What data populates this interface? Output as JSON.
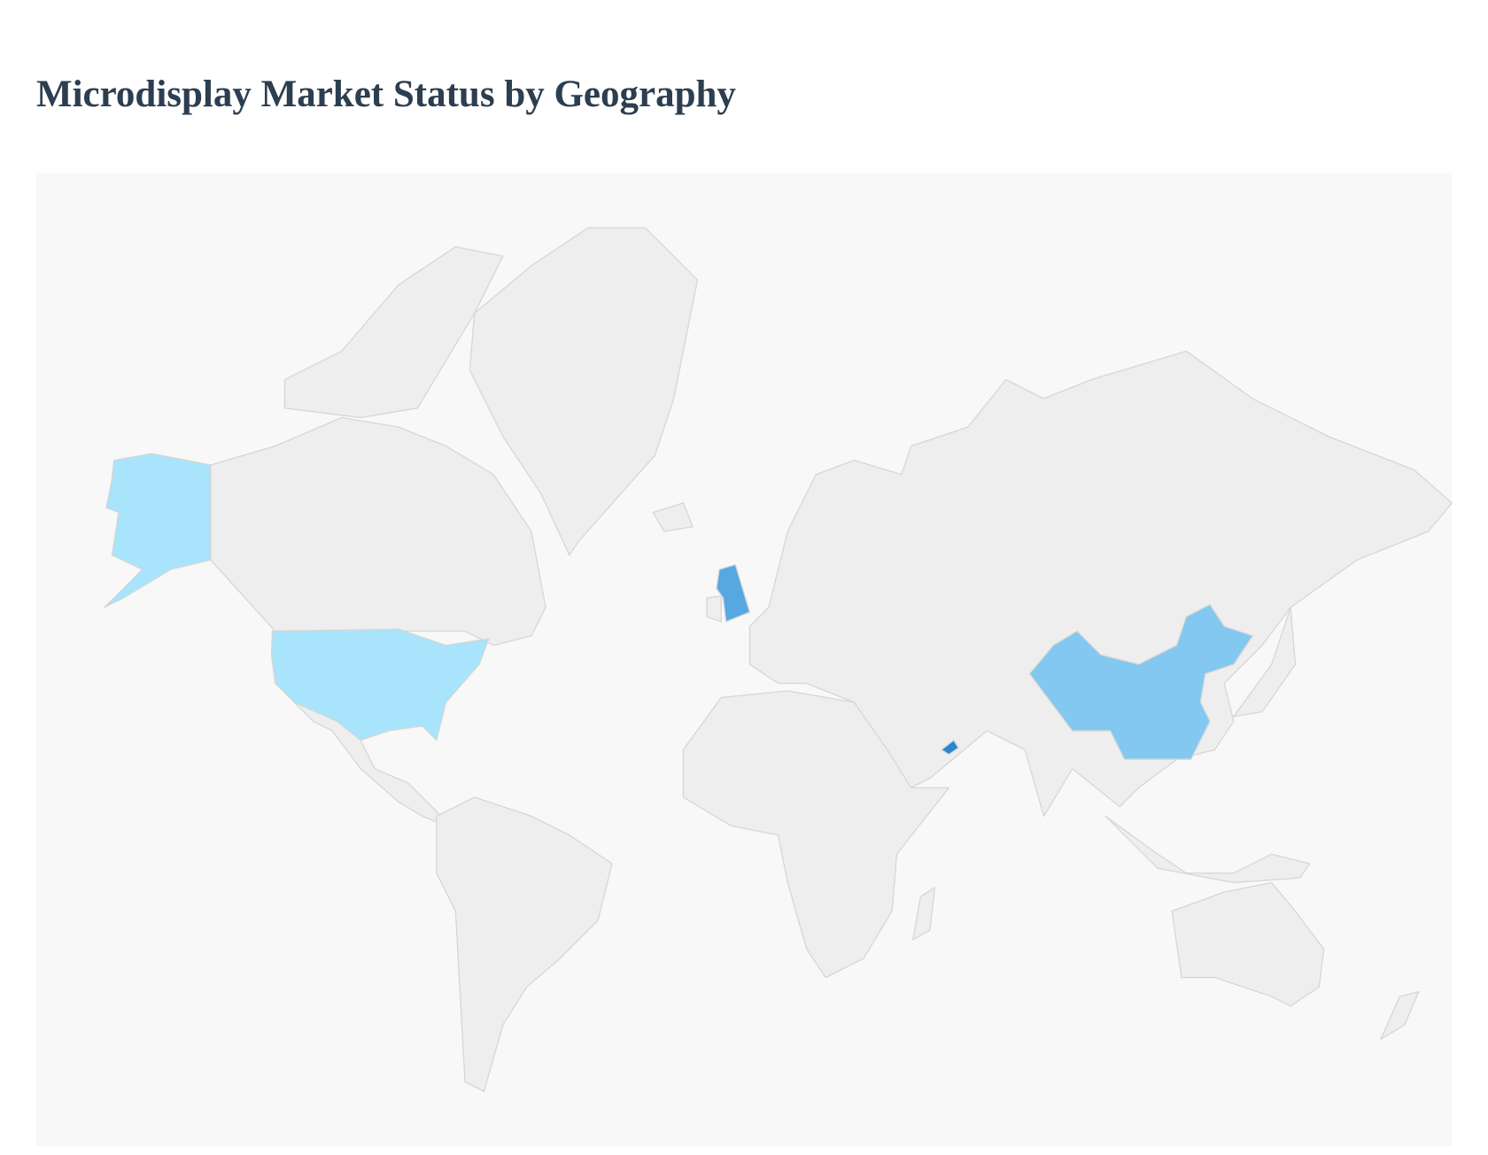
{
  "title": "Microdisplay Market Status by Geography",
  "map_data": {
    "type": "geo-choropleth",
    "base_land_color": "#eeeeee",
    "border_color": "#d6d6d6",
    "ocean_color": "#f8f8f8",
    "highlighted_regions": [
      {
        "name": "United States",
        "color": "#a8e4fb"
      },
      {
        "name": "China",
        "color": "#82c8f0"
      },
      {
        "name": "United Kingdom",
        "color": "#55a9e0"
      },
      {
        "name": "United Arab Emirates",
        "color": "#2a86d0"
      }
    ]
  }
}
